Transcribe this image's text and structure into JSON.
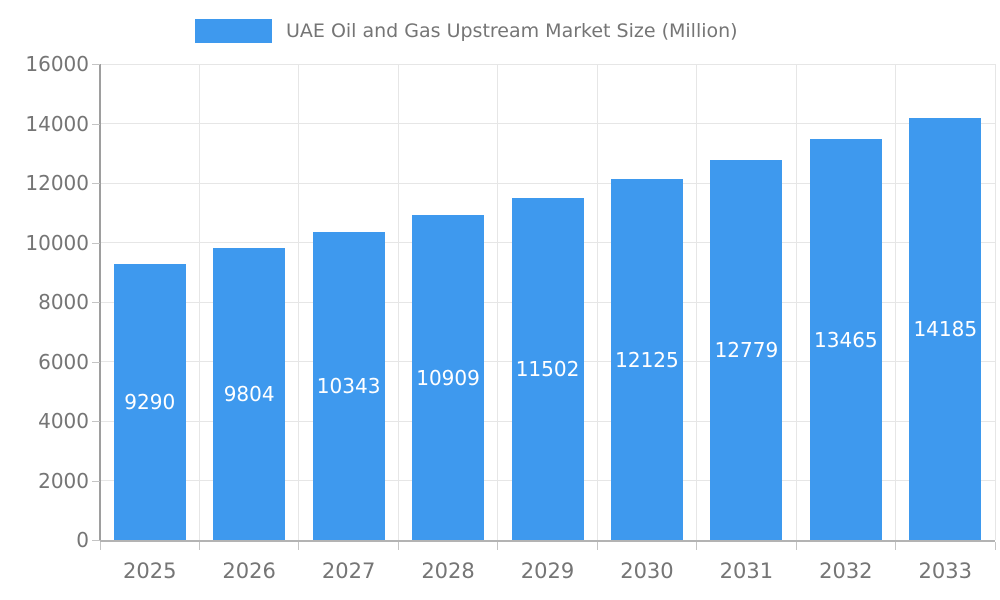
{
  "chart_data": {
    "type": "bar",
    "title": "UAE Oil and Gas Upstream Market Size (Million)",
    "legend": {
      "position": "top-center",
      "label": "UAE Oil and Gas Upstream Market Size (Million)"
    },
    "categories": [
      "2025",
      "2026",
      "2027",
      "2028",
      "2029",
      "2030",
      "2031",
      "2032",
      "2033"
    ],
    "values": [
      9290,
      9804,
      10343,
      10909,
      11502,
      12125,
      12779,
      13465,
      14185
    ],
    "xlabel": "",
    "ylabel": "",
    "ylim": [
      0,
      16000
    ],
    "yticks": [
      0,
      2000,
      4000,
      6000,
      8000,
      10000,
      12000,
      14000,
      16000
    ],
    "grid": true,
    "value_labels": "inside-center",
    "colors": {
      "bar": "#3E99EE",
      "grid": "#E6E6E6",
      "y_axis": "#9E9E9E",
      "x_axis": "#B3B3B3",
      "tick": "#C4C4C4",
      "text": "#757575",
      "value_label": "#FFFFFF"
    }
  }
}
